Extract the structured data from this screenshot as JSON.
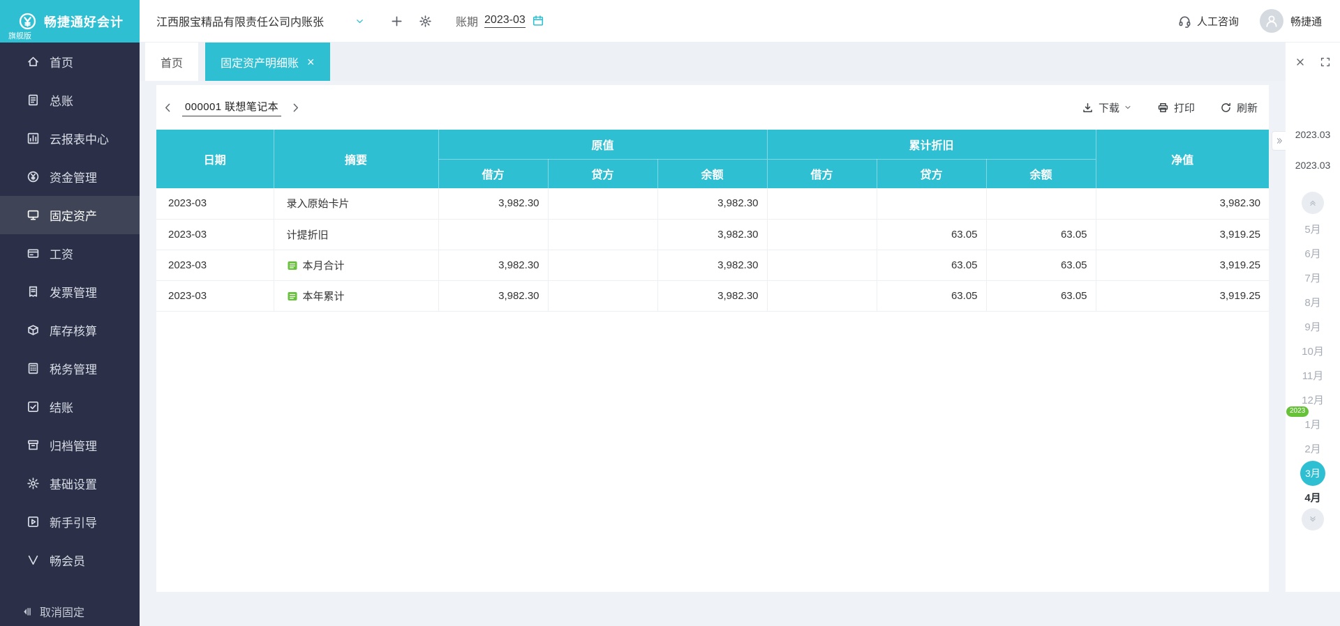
{
  "app": {
    "brand": "畅捷通好会计",
    "edition": "旗舰版"
  },
  "topbar": {
    "company": "江西服宝精品有限责任公司内账张",
    "period_label": "账期",
    "period_value": "2023-03",
    "support_label": "人工咨询",
    "username": "畅捷通"
  },
  "tabbar": {
    "tabs": [
      {
        "id": "home",
        "label": "首页",
        "active": false,
        "closable": false
      },
      {
        "id": "fixed-asset-ledger",
        "label": "固定资产明细账",
        "active": true,
        "closable": true
      }
    ]
  },
  "sidebar": {
    "items": [
      {
        "id": "home",
        "label": "首页",
        "icon": "home-icon",
        "active": false
      },
      {
        "id": "general-ledger",
        "label": "总账",
        "icon": "ledger-icon",
        "active": false
      },
      {
        "id": "cloud-reports",
        "label": "云报表中心",
        "icon": "report-icon",
        "active": false
      },
      {
        "id": "fund-management",
        "label": "资金管理",
        "icon": "fund-icon",
        "active": false
      },
      {
        "id": "fixed-assets",
        "label": "固定资产",
        "icon": "fixed-asset-icon",
        "active": true
      },
      {
        "id": "salary",
        "label": "工资",
        "icon": "salary-icon",
        "active": false
      },
      {
        "id": "invoice-management",
        "label": "发票管理",
        "icon": "invoice-icon",
        "active": false
      },
      {
        "id": "inventory-accounting",
        "label": "库存核算",
        "icon": "inventory-icon",
        "active": false
      },
      {
        "id": "tax-management",
        "label": "税务管理",
        "icon": "tax-icon",
        "active": false
      },
      {
        "id": "closing",
        "label": "结账",
        "icon": "closing-icon",
        "active": false
      },
      {
        "id": "archive-management",
        "label": "归档管理",
        "icon": "archive-icon",
        "active": false
      },
      {
        "id": "basic-settings",
        "label": "基础设置",
        "icon": "settings-icon",
        "active": false
      },
      {
        "id": "beginner-guide",
        "label": "新手引导",
        "icon": "guide-icon",
        "active": false
      },
      {
        "id": "membership",
        "label": "畅会员",
        "icon": "member-icon",
        "active": false
      }
    ],
    "footer_label": "取消固定"
  },
  "toolbar": {
    "asset_label": "000001  联想笔记本",
    "download_label": "下载",
    "print_label": "打印",
    "refresh_label": "刷新"
  },
  "table": {
    "columns": {
      "date": "日期",
      "summary": "摘要",
      "original_value": "原值",
      "accumulated_depreciation": "累计折旧",
      "net_value": "净值",
      "debit": "借方",
      "credit": "贷方",
      "balance": "余额"
    },
    "rows": [
      {
        "date": "2023-03",
        "summary": "录入原始卡片",
        "summary_icon": false,
        "values": [
          "3,982.30",
          "",
          "3,982.30",
          "",
          "",
          "",
          "3,982.30"
        ]
      },
      {
        "date": "2023-03",
        "summary": "计提折旧",
        "summary_icon": false,
        "values": [
          "",
          "",
          "3,982.30",
          "",
          "63.05",
          "63.05",
          "3,919.25"
        ]
      },
      {
        "date": "2023-03",
        "summary": "本月合计",
        "summary_icon": true,
        "values": [
          "3,982.30",
          "",
          "3,982.30",
          "",
          "63.05",
          "63.05",
          "3,919.25"
        ]
      },
      {
        "date": "2023-03",
        "summary": "本年累计",
        "summary_icon": true,
        "values": [
          "3,982.30",
          "",
          "3,982.30",
          "",
          "63.05",
          "63.05",
          "3,919.25"
        ]
      }
    ]
  },
  "timeline": {
    "period_start": "2023.03",
    "period_end": "2023.03",
    "year_badge": "2023",
    "months": [
      {
        "label": "5月"
      },
      {
        "label": "6月"
      },
      {
        "label": "7月"
      },
      {
        "label": "8月"
      },
      {
        "label": "9月"
      },
      {
        "label": "10月"
      },
      {
        "label": "11月"
      },
      {
        "label": "12月"
      },
      {
        "label": "1月",
        "year_start": true
      },
      {
        "label": "2月"
      },
      {
        "label": "3月",
        "selected": true
      },
      {
        "label": "4月",
        "current": true
      }
    ]
  },
  "colors": {
    "accent": "#2EBFD2",
    "sidebar_bg": "#2B3048",
    "green": "#67C23A"
  }
}
